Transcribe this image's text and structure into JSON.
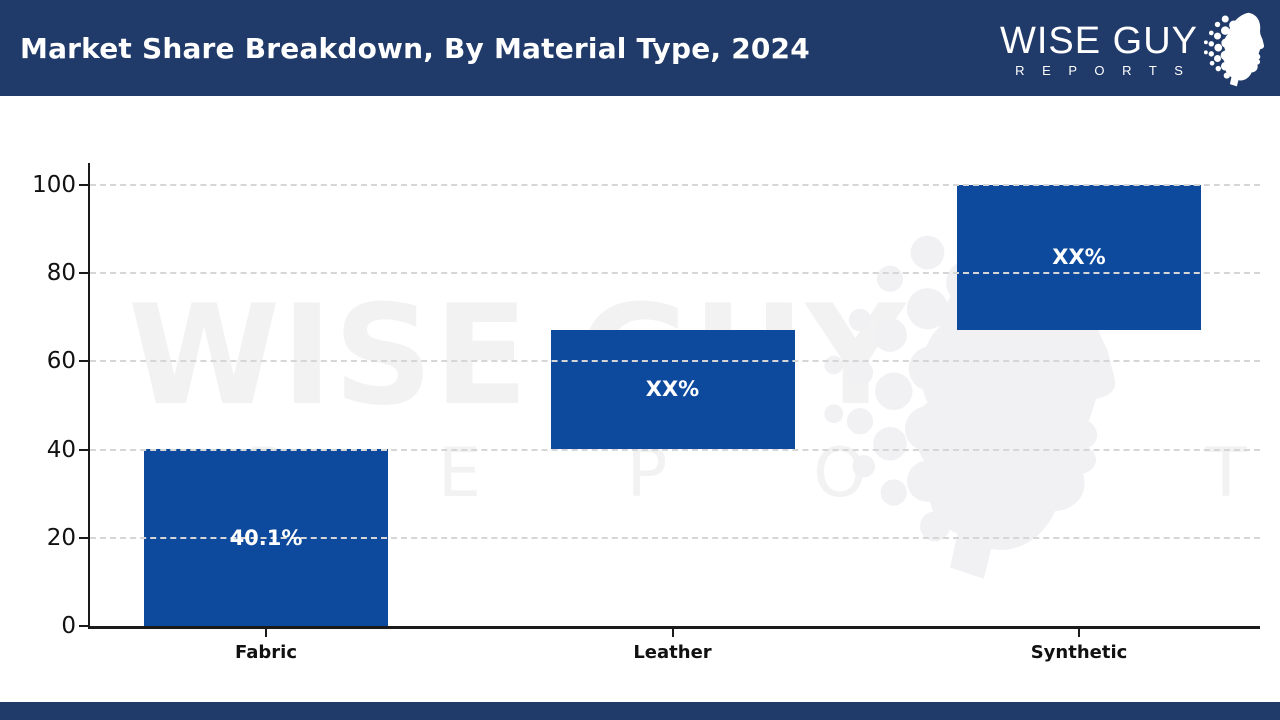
{
  "header": {
    "title": "Market Share Breakdown, By Material Type, 2024",
    "logo": {
      "line1": "WISE GUY",
      "line2": "R E P O R T S"
    }
  },
  "watermark": {
    "line1": "WISE GUY",
    "line2": "R E P O R T S"
  },
  "footer": {},
  "icons": {
    "brand_head": "wise-guy-head-dots-icon"
  },
  "colors": {
    "header_bg": "#203a69",
    "footer_bg": "#203a69",
    "bar": "#0d4a9d",
    "bar_label": "#ffffff",
    "gridline": "#d6d6d6",
    "axis": "#1a1a1a",
    "watermark": "#f2f2f3"
  },
  "chart_data": {
    "type": "bar",
    "subtype": "floating-waterfall",
    "title": "Market Share Breakdown, By Material Type, 2024",
    "categories": [
      "Fabric",
      "Leather",
      "Synthetic"
    ],
    "series": [
      {
        "name": "Market Share %",
        "segments": [
          {
            "category": "Fabric",
            "from": 0,
            "to": 40.1,
            "label": "40.1%"
          },
          {
            "category": "Leather",
            "from": 40.1,
            "to": 67.2,
            "label": "XX%"
          },
          {
            "category": "Synthetic",
            "from": 67.2,
            "to": 100,
            "label": "XX%"
          }
        ]
      }
    ],
    "xlabel": "",
    "ylabel": "",
    "ylim": [
      0,
      105
    ],
    "yticks": [
      0,
      20,
      40,
      60,
      80,
      100
    ],
    "grid": "horizontal-dashed",
    "grid_above_bars": true,
    "legend": "none"
  }
}
